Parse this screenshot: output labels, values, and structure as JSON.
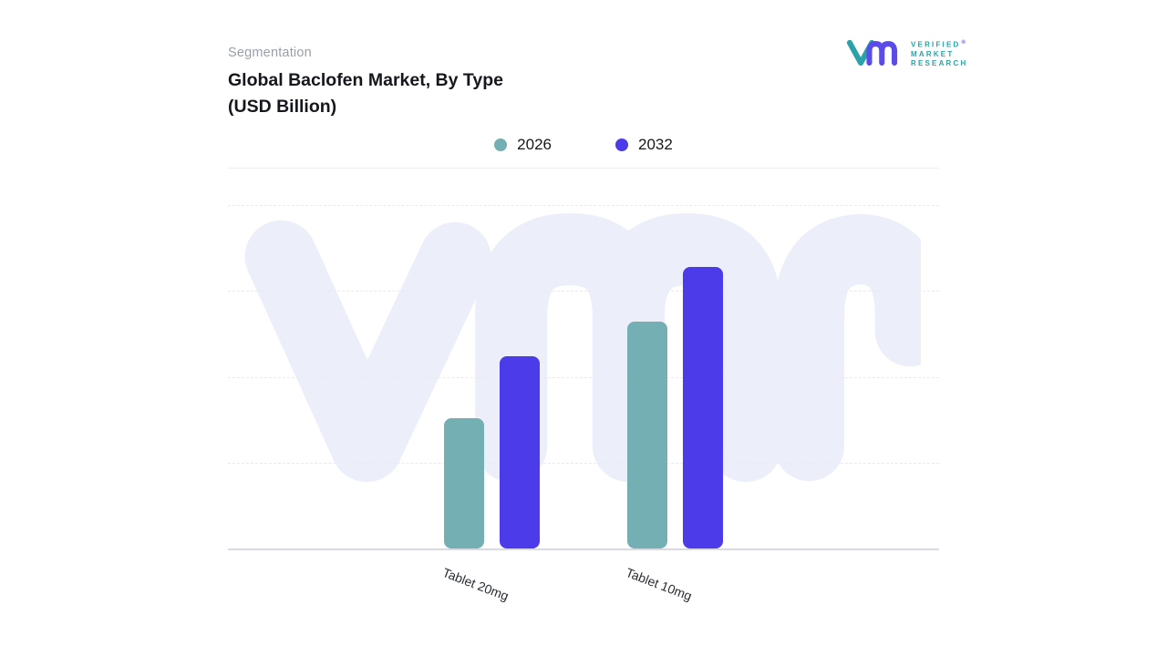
{
  "header": {
    "section_label": "Segmentation",
    "title_line1": "Global Baclofen Market, By Type",
    "title_line2": "(USD Billion)"
  },
  "logo": {
    "lines": [
      "VERIFIED",
      "MARKET",
      "RESEARCH"
    ],
    "registered_mark": "®",
    "mark_colors": {
      "v": "#2BA2A8",
      "m": "#5A4BEA"
    },
    "text_color": "#2BA2A8"
  },
  "chart_data": {
    "type": "bar",
    "title": "Global Baclofen Market, By Type (USD Billion)",
    "categories": [
      "Tablet 20mg",
      "Tablet 10mg"
    ],
    "series": [
      {
        "name": "2026",
        "color": "#74AFB3",
        "values": [
          1.9,
          3.3
        ]
      },
      {
        "name": "2032",
        "color": "#4B3BE9",
        "values": [
          2.8,
          4.1
        ]
      }
    ],
    "ylabel": "USD Billion",
    "ylim": [
      0,
      5
    ],
    "grid": "horizontal-dashed",
    "legend_position": "top-center",
    "y_axis_tick_labels_visible": false,
    "note": "No numeric axis tick labels are shown in the source image; values are estimated from relative bar heights."
  },
  "watermark": {
    "text": "vmr",
    "color": "#ECEFF9"
  }
}
